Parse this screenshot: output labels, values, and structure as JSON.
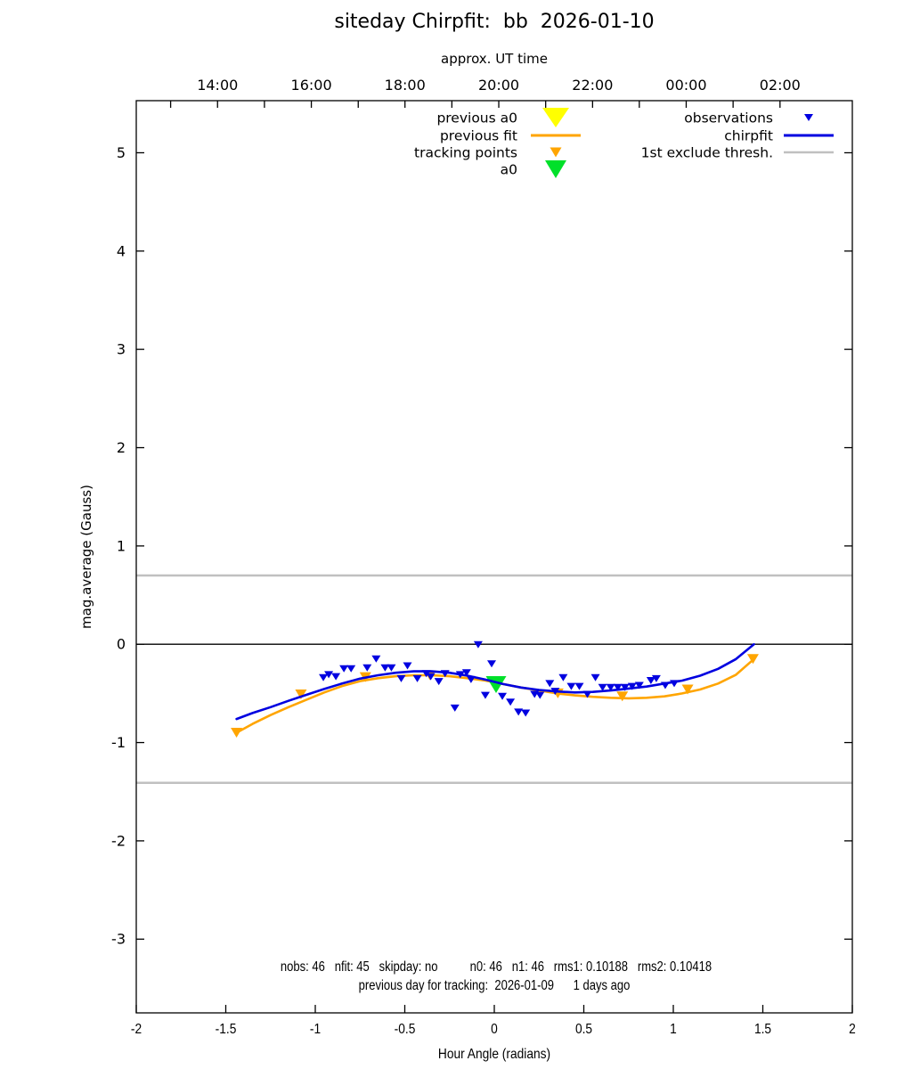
{
  "chart_data": {
    "type": "scatter",
    "title": "siteday Chirpfit:  bb  2026-01-10",
    "x2label": "approx. UT time",
    "xlabel": "Hour Angle (radians)",
    "ylabel": "mag.average (Gauss)",
    "xlim": [
      -2,
      2
    ],
    "ylim": [
      -3.75,
      5.53
    ],
    "grid": false,
    "x_ticks": [
      {
        "v": -2,
        "label": "-2"
      },
      {
        "v": -1.5,
        "label": "-1.5"
      },
      {
        "v": -1,
        "label": "-1"
      },
      {
        "v": -0.5,
        "label": "-0.5"
      },
      {
        "v": 0,
        "label": "0"
      },
      {
        "v": 0.5,
        "label": "0.5"
      },
      {
        "v": 1,
        "label": "1"
      },
      {
        "v": 1.5,
        "label": "1.5"
      },
      {
        "v": 2,
        "label": "2"
      }
    ],
    "y_ticks": [
      {
        "v": -3,
        "label": "-3"
      },
      {
        "v": -2,
        "label": "-2"
      },
      {
        "v": -1,
        "label": "-1"
      },
      {
        "v": 0,
        "label": "0"
      },
      {
        "v": 1,
        "label": "1"
      },
      {
        "v": 2,
        "label": "2"
      },
      {
        "v": 3,
        "label": "3"
      },
      {
        "v": 4,
        "label": "4"
      },
      {
        "v": 5,
        "label": "5"
      }
    ],
    "x2_major_ticks": [
      {
        "label": "14:00",
        "ha": -1.546
      },
      {
        "label": "16:00",
        "ha": -1.022
      },
      {
        "label": "18:00",
        "ha": -0.499
      },
      {
        "label": "20:00",
        "ha": 0.025
      },
      {
        "label": "22:00",
        "ha": 0.549
      },
      {
        "label": "00:00",
        "ha": 1.072
      },
      {
        "label": "02:00",
        "ha": 1.596
      }
    ],
    "x2_minor_ticks_ha": [
      -1.808,
      -1.284,
      -0.76,
      -0.237,
      0.287,
      0.81,
      1.334
    ],
    "zero_line_y": 0,
    "colors": {
      "observations": "#0000e0",
      "chirpfit": "#0000e0",
      "previous_fit": "#ffa500",
      "tracking_points": "#ffa500",
      "a0": "#00e02a",
      "previous_a0": "#ffff00",
      "exclude_threshold": "#c0c0c0",
      "zero_line": "#000000"
    },
    "exclude_thresholds": [
      0.7,
      -1.41
    ],
    "series": {
      "observations": {
        "name": "observations",
        "marker": "triangle-down",
        "points": [
          [
            -0.955,
            -0.34
          ],
          [
            -0.925,
            -0.31
          ],
          [
            -0.885,
            -0.33
          ],
          [
            -0.84,
            -0.25
          ],
          [
            -0.8,
            -0.25
          ],
          [
            -0.71,
            -0.24
          ],
          [
            -0.66,
            -0.15
          ],
          [
            -0.61,
            -0.24
          ],
          [
            -0.575,
            -0.24
          ],
          [
            -0.52,
            -0.35
          ],
          [
            -0.485,
            -0.22
          ],
          [
            -0.43,
            -0.35
          ],
          [
            -0.38,
            -0.3
          ],
          [
            -0.355,
            -0.33
          ],
          [
            -0.31,
            -0.38
          ],
          [
            -0.275,
            -0.3
          ],
          [
            -0.22,
            -0.65
          ],
          [
            -0.19,
            -0.31
          ],
          [
            -0.155,
            -0.29
          ],
          [
            -0.13,
            -0.36
          ],
          [
            -0.09,
            -0.005
          ],
          [
            -0.05,
            -0.52
          ],
          [
            -0.015,
            -0.2
          ],
          [
            0.045,
            -0.53
          ],
          [
            0.09,
            -0.59
          ],
          [
            0.135,
            -0.69
          ],
          [
            0.175,
            -0.7
          ],
          [
            0.225,
            -0.51
          ],
          [
            0.255,
            -0.52
          ],
          [
            0.31,
            -0.4
          ],
          [
            0.34,
            -0.48
          ],
          [
            0.385,
            -0.34
          ],
          [
            0.43,
            -0.43
          ],
          [
            0.475,
            -0.43
          ],
          [
            0.52,
            -0.51
          ],
          [
            0.565,
            -0.34
          ],
          [
            0.605,
            -0.44
          ],
          [
            0.65,
            -0.44
          ],
          [
            0.69,
            -0.44
          ],
          [
            0.73,
            -0.44
          ],
          [
            0.77,
            -0.43
          ],
          [
            0.81,
            -0.42
          ],
          [
            0.875,
            -0.37
          ],
          [
            0.905,
            -0.35
          ],
          [
            0.955,
            -0.42
          ],
          [
            1.005,
            -0.4
          ]
        ]
      },
      "chirpfit": {
        "name": "chirpfit",
        "points": [
          [
            -1.44,
            -0.76
          ],
          [
            -1.35,
            -0.7
          ],
          [
            -1.25,
            -0.64
          ],
          [
            -1.15,
            -0.575
          ],
          [
            -1.05,
            -0.515
          ],
          [
            -0.95,
            -0.455
          ],
          [
            -0.85,
            -0.4
          ],
          [
            -0.75,
            -0.35
          ],
          [
            -0.65,
            -0.315
          ],
          [
            -0.55,
            -0.29
          ],
          [
            -0.45,
            -0.275
          ],
          [
            -0.35,
            -0.275
          ],
          [
            -0.25,
            -0.29
          ],
          [
            -0.15,
            -0.32
          ],
          [
            -0.05,
            -0.36
          ],
          [
            0.05,
            -0.405
          ],
          [
            0.15,
            -0.44
          ],
          [
            0.25,
            -0.465
          ],
          [
            0.35,
            -0.48
          ],
          [
            0.45,
            -0.49
          ],
          [
            0.55,
            -0.485
          ],
          [
            0.65,
            -0.47
          ],
          [
            0.75,
            -0.45
          ],
          [
            0.85,
            -0.43
          ],
          [
            0.95,
            -0.4
          ],
          [
            1.05,
            -0.37
          ],
          [
            1.15,
            -0.32
          ],
          [
            1.25,
            -0.25
          ],
          [
            1.35,
            -0.15
          ],
          [
            1.45,
            0.0
          ]
        ]
      },
      "previous_fit": {
        "name": "previous fit",
        "points": [
          [
            -1.44,
            -0.9
          ],
          [
            -1.35,
            -0.81
          ],
          [
            -1.25,
            -0.72
          ],
          [
            -1.15,
            -0.64
          ],
          [
            -1.05,
            -0.565
          ],
          [
            -0.95,
            -0.49
          ],
          [
            -0.85,
            -0.425
          ],
          [
            -0.75,
            -0.375
          ],
          [
            -0.65,
            -0.345
          ],
          [
            -0.55,
            -0.325
          ],
          [
            -0.45,
            -0.315
          ],
          [
            -0.35,
            -0.315
          ],
          [
            -0.25,
            -0.325
          ],
          [
            -0.15,
            -0.345
          ],
          [
            -0.05,
            -0.37
          ],
          [
            0.05,
            -0.405
          ],
          [
            0.15,
            -0.44
          ],
          [
            0.25,
            -0.47
          ],
          [
            0.35,
            -0.5
          ],
          [
            0.45,
            -0.52
          ],
          [
            0.55,
            -0.535
          ],
          [
            0.65,
            -0.545
          ],
          [
            0.75,
            -0.55
          ],
          [
            0.85,
            -0.545
          ],
          [
            0.95,
            -0.53
          ],
          [
            1.05,
            -0.5
          ],
          [
            1.15,
            -0.46
          ],
          [
            1.25,
            -0.4
          ],
          [
            1.35,
            -0.31
          ],
          [
            1.45,
            -0.15
          ]
        ]
      },
      "tracking_points": {
        "name": "tracking points",
        "marker": "triangle-down",
        "points": [
          [
            -1.44,
            -0.9
          ],
          [
            -1.08,
            -0.51
          ],
          [
            -0.72,
            -0.335
          ],
          [
            -0.36,
            -0.315
          ],
          [
            0.355,
            -0.5
          ],
          [
            0.715,
            -0.53
          ],
          [
            1.08,
            -0.46
          ],
          [
            1.445,
            -0.15
          ]
        ]
      },
      "a0": {
        "name": "a0",
        "marker": "triangle-down",
        "points": [
          [
            0.01,
            -0.41
          ]
        ]
      }
    }
  },
  "legend": {
    "left_column": [
      {
        "label": "previous a0",
        "sample": "marker",
        "color": "#ffff00",
        "mw": 30,
        "mh": 22
      },
      {
        "label": "previous fit",
        "sample": "line",
        "color": "#ffa500"
      },
      {
        "label": "tracking points",
        "sample": "marker",
        "color": "#ffa500",
        "mw": 13,
        "mh": 11
      },
      {
        "label": "a0",
        "sample": "marker",
        "color": "#00e02a",
        "mw": 24,
        "mh": 20
      }
    ],
    "right_column": [
      {
        "label": "observations",
        "sample": "marker",
        "color": "#0000e0",
        "mw": 10,
        "mh": 8
      },
      {
        "label": "chirpfit",
        "sample": "line",
        "color": "#0000e0"
      },
      {
        "label": "1st exclude thresh.",
        "sample": "line",
        "color": "#c0c0c0"
      }
    ]
  },
  "stats": {
    "line1": "nobs: 46   nfit: 45   skipday: no          n0: 46   n1: 46   rms1: 0.10188   rms2: 0.10418",
    "line2": "previous day for tracking:  2026-01-09      1 days ago"
  }
}
